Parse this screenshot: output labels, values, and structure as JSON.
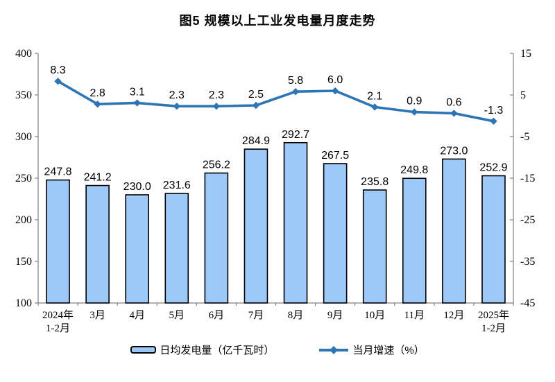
{
  "title": "图5 规模以上工业发电量月度走势",
  "chart_data": {
    "type": "combo",
    "categories": [
      [
        "2024年",
        "1-2月"
      ],
      "3月",
      "4月",
      "5月",
      "6月",
      "7月",
      "8月",
      "9月",
      "10月",
      "11月",
      "12月",
      [
        "2025年",
        "1-2月"
      ]
    ],
    "series": [
      {
        "name": "日均发电量（亿千瓦时）",
        "type": "bar",
        "axis": "left",
        "values": [
          247.8,
          241.2,
          230.0,
          231.6,
          256.2,
          284.9,
          292.7,
          267.5,
          235.8,
          249.8,
          273.0,
          252.9
        ],
        "labels": [
          "247.8",
          "241.2",
          "230.0",
          "231.6",
          "256.2",
          "284.9",
          "292.7",
          "267.5",
          "235.8",
          "249.8",
          "273.0",
          "252.9"
        ],
        "fill": "#9DC9F8",
        "stroke": "#000000"
      },
      {
        "name": "当月增速（%）",
        "type": "line",
        "axis": "right",
        "values": [
          8.3,
          2.8,
          3.1,
          2.3,
          2.3,
          2.5,
          5.8,
          6.0,
          2.1,
          0.9,
          0.6,
          -1.3
        ],
        "labels": [
          "8.3",
          "2.8",
          "3.1",
          "2.3",
          "2.3",
          "2.5",
          "5.8",
          "6.0",
          "2.1",
          "0.9",
          "0.6",
          "-1.3"
        ],
        "color": "#2E75B6"
      }
    ],
    "axes": {
      "left": {
        "min": 100,
        "max": 400,
        "ticks": [
          "400",
          "350",
          "300",
          "250",
          "200",
          "150",
          "100"
        ]
      },
      "right": {
        "min": -45,
        "max": 15,
        "ticks": [
          "15",
          "5",
          "-5",
          "-15",
          "-25",
          "-35",
          "-45"
        ]
      }
    },
    "grid": false,
    "legend_position": "bottom",
    "axis_color": "#808080",
    "text_color": "#000000"
  }
}
